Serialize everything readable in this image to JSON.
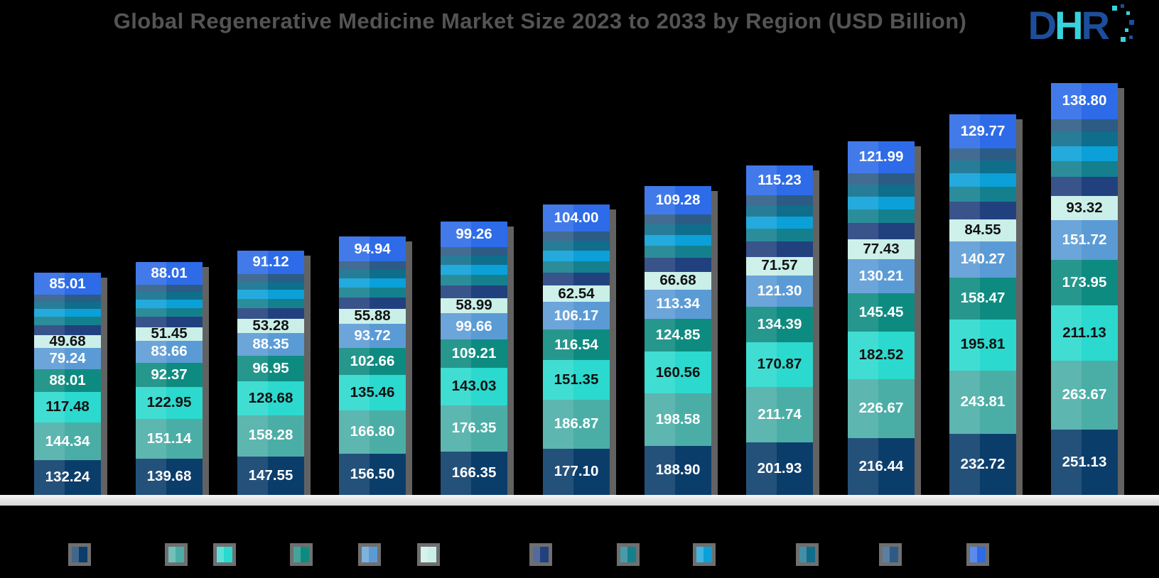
{
  "title": {
    "text": "Global Regenerative Medicine Market Size 2023 to 2033 by Region (USD Billion)",
    "color": "#545454"
  },
  "logo": {
    "letters": [
      {
        "char": "D",
        "color": "#1C4E9B"
      },
      {
        "char": "H",
        "color": "#38D2DC"
      },
      {
        "char": "R",
        "color": "#1C4E9B"
      }
    ],
    "dot_colors": [
      "#38D2DC",
      "#1C4E9B"
    ]
  },
  "chart_data": {
    "type": "bar",
    "stacked": true,
    "title": "Global Regenerative Medicine Market Size 2023 to 2033 by Region (USD Billion)",
    "xlabel": "",
    "ylabel": "",
    "x_tick_labels_visible": false,
    "y_axis_visible": false,
    "grid": false,
    "legend_position": "bottom",
    "legend_labels_visible": false,
    "bar_count": 11,
    "series_order": "bottom_to_top",
    "series": [
      {
        "name": "navy",
        "color": "#0B3D6B",
        "labeled": true,
        "label_color": "#ffffff",
        "values": [
          "132.24",
          "139.68",
          "147.55",
          "156.50",
          "166.35",
          "177.10",
          "188.90",
          "201.93",
          "216.44",
          "232.72",
          "251.13"
        ]
      },
      {
        "name": "sea-green",
        "color": "#4BAEA6",
        "labeled": true,
        "label_color": "#ffffff",
        "values": [
          "144.34",
          "151.14",
          "158.28",
          "166.80",
          "176.35",
          "186.87",
          "198.58",
          "211.74",
          "226.67",
          "243.81",
          "263.67"
        ]
      },
      {
        "name": "turquoise",
        "color": "#2BD9CE",
        "labeled": true,
        "label_color": "#111111",
        "values": [
          "117.48",
          "122.95",
          "128.68",
          "135.46",
          "143.03",
          "151.35",
          "160.56",
          "170.87",
          "182.52",
          "195.81",
          "211.13"
        ]
      },
      {
        "name": "teal-green",
        "color": "#0E8B80",
        "labeled": true,
        "label_color": "#ffffff",
        "values": [
          "88.01",
          "92.37",
          "96.95",
          "102.66",
          "109.21",
          "116.54",
          "124.85",
          "134.39",
          "145.45",
          "158.47",
          "173.95"
        ]
      },
      {
        "name": "steel-blue",
        "color": "#5B9BD5",
        "labeled": true,
        "label_color": "#ffffff",
        "values": [
          "79.24",
          "83.66",
          "88.35",
          "93.72",
          "99.66",
          "106.17",
          "113.34",
          "121.30",
          "130.21",
          "140.27",
          "151.72"
        ]
      },
      {
        "name": "mint",
        "color": "#C9EFE8",
        "labeled": true,
        "label_color": "#111111",
        "values": [
          "49.68",
          "51.45",
          "53.28",
          "55.88",
          "58.99",
          "62.54",
          "66.68",
          "71.57",
          "77.43",
          "84.55",
          "93.32"
        ]
      },
      {
        "name": "dark-blue",
        "color": "#21417E",
        "labeled": false,
        "estimated_from_pixels": true,
        "values": [
          38.0,
          40.1,
          42.4,
          45.0,
          47.8,
          50.9,
          54.3,
          58.0,
          62.2,
          66.9,
          72.2
        ]
      },
      {
        "name": "teal",
        "color": "#14808E",
        "labeled": false,
        "estimated_from_pixels": true,
        "values": [
          32.0,
          33.8,
          35.7,
          37.9,
          40.3,
          42.9,
          45.7,
          48.9,
          52.4,
          56.3,
          60.8
        ]
      },
      {
        "name": "sky-blue",
        "color": "#0BA0D8",
        "labeled": false,
        "estimated_from_pixels": true,
        "values": [
          30.0,
          31.7,
          33.5,
          35.5,
          37.7,
          40.2,
          42.9,
          45.8,
          49.1,
          52.8,
          57.0
        ]
      },
      {
        "name": "dark-teal",
        "color": "#0F6E8C",
        "labeled": false,
        "estimated_from_pixels": true,
        "values": [
          28.0,
          29.6,
          31.2,
          33.1,
          35.2,
          37.5,
          40.0,
          42.8,
          45.8,
          49.3,
          53.2
        ]
      },
      {
        "name": "steel-navy",
        "color": "#2C5B85",
        "labeled": false,
        "estimated_from_pixels": true,
        "values": [
          26.0,
          27.5,
          29.0,
          30.8,
          32.7,
          34.8,
          37.1,
          39.7,
          42.6,
          45.8,
          49.4
        ]
      },
      {
        "name": "royal-blue",
        "color": "#2D6BE8",
        "labeled": true,
        "label_color": "#ffffff",
        "values": [
          "85.01",
          "88.01",
          "91.12",
          "94.94",
          "99.26",
          "104.00",
          "109.28",
          "115.23",
          "121.99",
          "129.77",
          "138.80"
        ]
      }
    ]
  }
}
